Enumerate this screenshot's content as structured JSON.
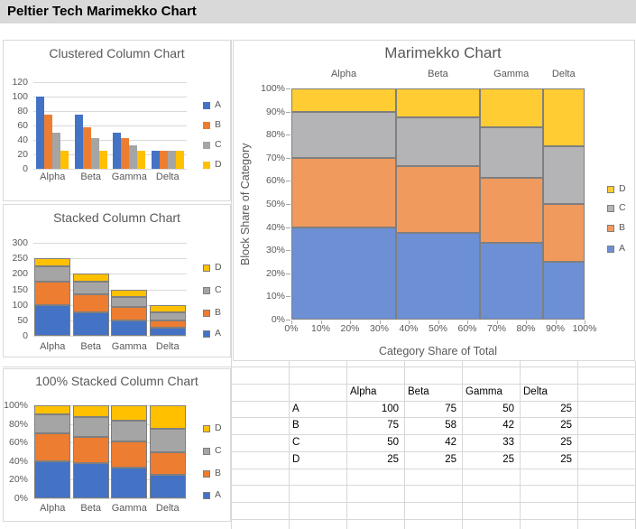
{
  "header": {
    "title": "Peltier Tech Marimekko Chart"
  },
  "palette": {
    "series_colors": {
      "A": "#4472C4",
      "B": "#ED7D31",
      "C": "#A5A5A5",
      "D": "#FFC000"
    },
    "mekko_series_colors": {
      "A": "#6D8FD4",
      "B": "#F09A5E",
      "C": "#B4B4B6",
      "D": "#FFCC33"
    },
    "block_border": "#7F7F7F",
    "header_bg": "#D9D9D9",
    "chart_text": "#595959",
    "gridline": "#D9D9D9",
    "table_line": "#D8D8D8",
    "tick_mark": "#A6A6A6"
  },
  "chart_data": [
    {
      "id": "clustered",
      "type": "bar",
      "variant": "clustered",
      "title": "Clustered Column Chart",
      "categories": [
        "Alpha",
        "Beta",
        "Gamma",
        "Delta"
      ],
      "series": [
        {
          "name": "A",
          "values": [
            100,
            75,
            50,
            25
          ]
        },
        {
          "name": "B",
          "values": [
            75,
            58,
            42,
            25
          ]
        },
        {
          "name": "C",
          "values": [
            50,
            42,
            33,
            25
          ]
        },
        {
          "name": "D",
          "values": [
            25,
            25,
            25,
            25
          ]
        }
      ],
      "ylim": [
        0,
        120
      ],
      "yticks": [
        "0",
        "20",
        "40",
        "60",
        "80",
        "100",
        "120"
      ],
      "legend": [
        "A",
        "B",
        "C",
        "D"
      ],
      "legend_position": "right",
      "grid": true
    },
    {
      "id": "stacked",
      "type": "bar",
      "variant": "stacked",
      "title": "Stacked Column Chart",
      "categories": [
        "Alpha",
        "Beta",
        "Gamma",
        "Delta"
      ],
      "series": [
        {
          "name": "A",
          "values": [
            100,
            75,
            50,
            25
          ]
        },
        {
          "name": "B",
          "values": [
            75,
            58,
            42,
            25
          ]
        },
        {
          "name": "C",
          "values": [
            50,
            42,
            33,
            25
          ]
        },
        {
          "name": "D",
          "values": [
            25,
            25,
            25,
            25
          ]
        }
      ],
      "ylim": [
        0,
        300
      ],
      "yticks": [
        "0",
        "50",
        "100",
        "150",
        "200",
        "250",
        "300"
      ],
      "legend": [
        "D",
        "C",
        "B",
        "A"
      ],
      "legend_position": "right",
      "grid": true
    },
    {
      "id": "stacked100",
      "type": "bar",
      "variant": "stacked100",
      "title": "100% Stacked Column Chart",
      "categories": [
        "Alpha",
        "Beta",
        "Gamma",
        "Delta"
      ],
      "series": [
        {
          "name": "A",
          "values": [
            100,
            75,
            50,
            25
          ]
        },
        {
          "name": "B",
          "values": [
            75,
            58,
            42,
            25
          ]
        },
        {
          "name": "C",
          "values": [
            50,
            42,
            33,
            25
          ]
        },
        {
          "name": "D",
          "values": [
            25,
            25,
            25,
            25
          ]
        }
      ],
      "ylim_percent": [
        0,
        100
      ],
      "yticks": [
        "0%",
        "20%",
        "40%",
        "60%",
        "80%",
        "100%"
      ],
      "legend": [
        "D",
        "C",
        "B",
        "A"
      ],
      "legend_position": "right",
      "grid": true
    },
    {
      "id": "marimekko",
      "type": "marimekko",
      "title": "Marimekko Chart",
      "xlabel": "Category Share of Total",
      "ylabel": "Block Share of Category",
      "categories": [
        "Alpha",
        "Beta",
        "Gamma",
        "Delta"
      ],
      "category_totals": [
        250,
        200,
        150,
        100
      ],
      "series": [
        {
          "name": "A",
          "values": [
            100,
            75,
            50,
            25
          ]
        },
        {
          "name": "B",
          "values": [
            75,
            58,
            42,
            25
          ]
        },
        {
          "name": "C",
          "values": [
            50,
            42,
            33,
            25
          ]
        },
        {
          "name": "D",
          "values": [
            25,
            25,
            25,
            25
          ]
        }
      ],
      "xticks": [
        "0%",
        "10%",
        "20%",
        "30%",
        "40%",
        "50%",
        "60%",
        "70%",
        "80%",
        "90%",
        "100%"
      ],
      "yticks": [
        "0%",
        "10%",
        "20%",
        "30%",
        "40%",
        "50%",
        "60%",
        "70%",
        "80%",
        "90%",
        "100%"
      ],
      "legend": [
        "D",
        "C",
        "B",
        "A"
      ],
      "legend_position": "right",
      "grid": false
    }
  ],
  "table": {
    "column_headers": [
      "Alpha",
      "Beta",
      "Gamma",
      "Delta"
    ],
    "rows": [
      {
        "label": "A",
        "values": [
          "100",
          "75",
          "50",
          "25"
        ]
      },
      {
        "label": "B",
        "values": [
          "75",
          "58",
          "42",
          "25"
        ]
      },
      {
        "label": "C",
        "values": [
          "50",
          "42",
          "33",
          "25"
        ]
      },
      {
        "label": "D",
        "values": [
          "25",
          "25",
          "25",
          "25"
        ]
      }
    ]
  }
}
